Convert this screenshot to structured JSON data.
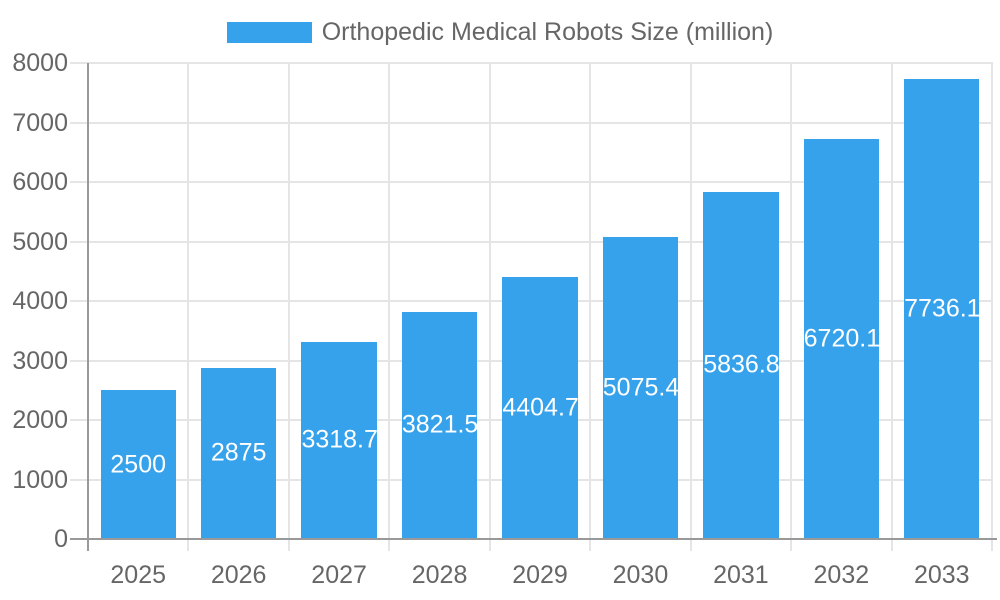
{
  "chart_data": {
    "type": "bar",
    "legend": "Orthopedic Medical Robots Size (million)",
    "legend_position": "top-center",
    "categories": [
      "2025",
      "2026",
      "2027",
      "2028",
      "2029",
      "2030",
      "2031",
      "2032",
      "2033"
    ],
    "series": [
      {
        "name": "Orthopedic Medical Robots Size (million)",
        "values": [
          2500,
          2875,
          3318.75,
          3821.56,
          4404.79,
          5075.48,
          5836.8,
          6720.14,
          7736.16
        ],
        "value_labels": [
          "2500",
          "2875",
          "3318.75",
          "3821.56",
          "4404.79",
          "5075.48",
          "5836.8",
          "6720.14",
          "7736.16"
        ]
      }
    ],
    "xlabel": "",
    "ylabel": "",
    "ylim": [
      0,
      8000
    ],
    "yticks": [
      0,
      1000,
      2000,
      3000,
      4000,
      5000,
      6000,
      7000,
      8000
    ],
    "grid": true,
    "value_label_position": "inside-center",
    "colors": {
      "bar": "#36A2EB",
      "grid": "#e5e5e5",
      "axis": "#999999",
      "text": "#666666",
      "value_label": "#ffffff",
      "background": "#ffffff"
    }
  }
}
